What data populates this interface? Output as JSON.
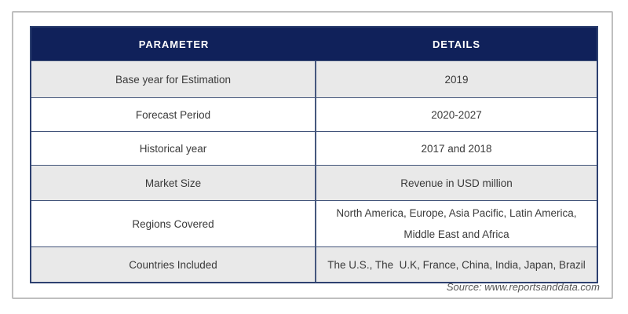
{
  "table": {
    "headers": {
      "parameter": "PARAMETER",
      "details": "DETAILS"
    },
    "rows": [
      {
        "parameter": "Base year for Estimation",
        "details": "2019"
      },
      {
        "parameter": "Forecast Period",
        "details": "2020-2027"
      },
      {
        "parameter": "Historical year",
        "details": "2017 and 2018"
      },
      {
        "parameter": "Market Size",
        "details": "Revenue in USD million"
      },
      {
        "parameter": "Regions Covered",
        "details": "North America, Europe, Asia Pacific, Latin America, Middle East and Africa"
      },
      {
        "parameter": "Countries Included",
        "details": "The U.S., The  U.K, France, China, India, Japan, Brazil"
      }
    ]
  },
  "source": {
    "label": "Source: www.reportsanddata.com"
  },
  "colors": {
    "header_bg": "#10215a",
    "header_text": "#ffffff",
    "row_shaded_bg": "#e9e9e9",
    "row_plain_bg": "#ffffff",
    "table_border": "#2e4170",
    "inner_border": "#46587e",
    "body_text": "#3a3a3a",
    "source_text": "#565656",
    "frame_border": "#bfbfbf"
  }
}
